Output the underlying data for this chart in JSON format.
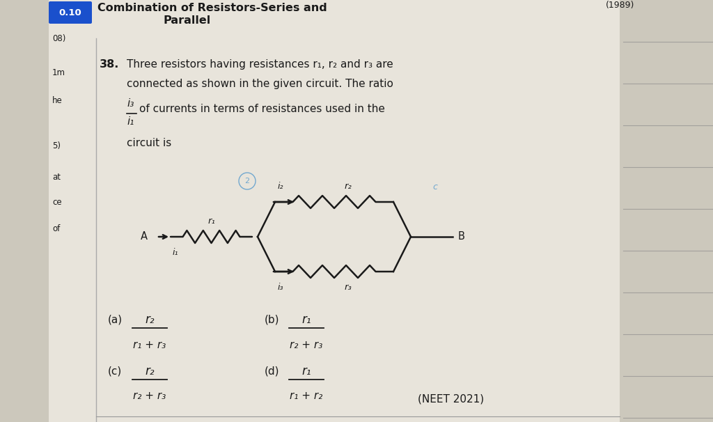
{
  "bg_color": "#ccc8bc",
  "page_color": "#e8e4db",
  "title_badge_color": "#1a50cc",
  "title_prefix": "0.10",
  "title_text": "Combination of Resistors-Series and Parallel",
  "year": "(1989)",
  "left_margin_labels": [
    [
      "08)",
      0.88
    ],
    [
      "1m",
      0.78
    ],
    [
      "he",
      0.7
    ],
    [
      "5)",
      0.58
    ],
    [
      "at",
      0.5
    ],
    [
      "ce",
      0.43
    ],
    [
      "of",
      0.36
    ]
  ],
  "q_number": "38.",
  "q_line1": "Three resistors having resistances r₁, r₂ and r₃ are",
  "q_line2": "connected as shown in the given circuit. The ratio",
  "q_frac_num": "i₃",
  "q_frac_line": "—",
  "q_frac_den": "i₁",
  "q_frac_text": " of currents in terms of resistances used in the",
  "q_last": "circuit is",
  "opt_a_label": "(a)",
  "opt_a_num": "r₂",
  "opt_a_den": "r₁ + r₃",
  "opt_b_label": "(b)",
  "opt_b_num": "r₁",
  "opt_b_den": "r₂ + r₃",
  "opt_c_label": "(c)",
  "opt_c_num": "r₂",
  "opt_c_den": "r₂ + r₃",
  "opt_d_label": "(d)",
  "opt_d_num": "r₁",
  "opt_d_den": "r₁ + r₂",
  "neet": "(NEET 2021)",
  "text_color": "#1a1a1a",
  "circuit_color": "#1a1a1a",
  "red_color": "#c0392b"
}
